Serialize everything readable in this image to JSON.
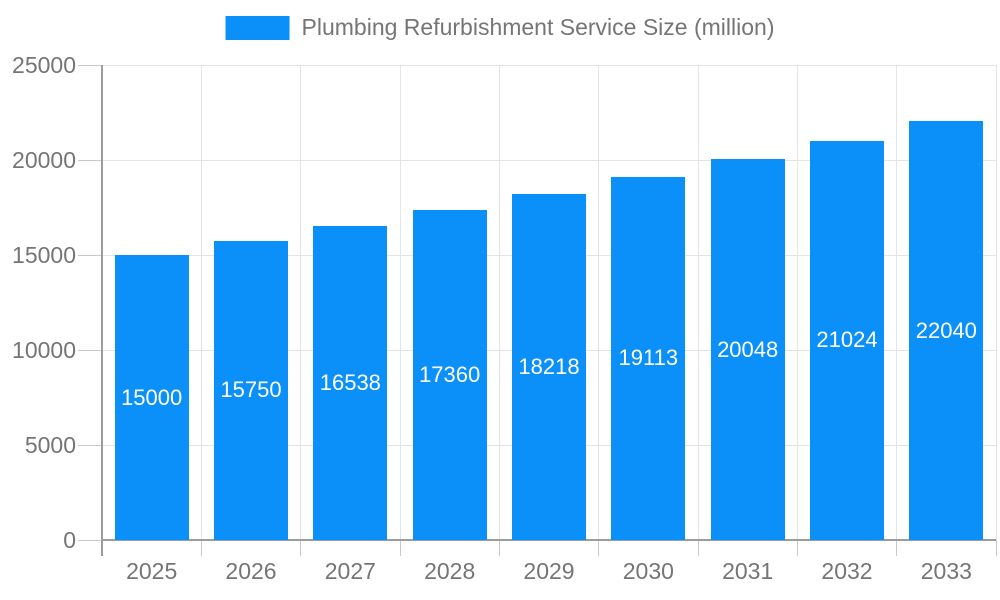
{
  "legend": {
    "label": "Plumbing Refurbishment Service Size (million)"
  },
  "chart_data": {
    "type": "bar",
    "title": "Plumbing Refurbishment Service Size (million)",
    "categories": [
      "2025",
      "2026",
      "2027",
      "2028",
      "2029",
      "2030",
      "2031",
      "2032",
      "2033"
    ],
    "values": [
      15000,
      15750,
      16538,
      17360,
      18218,
      19113,
      20048,
      21024,
      22040
    ],
    "xlabel": "",
    "ylabel": "",
    "ylim": [
      0,
      25000
    ],
    "yticks": [
      0,
      5000,
      10000,
      15000,
      20000,
      25000
    ],
    "grid": true,
    "legend_position": "top",
    "colors": {
      "bar": "#0A90F8",
      "bar_label_text": "#ffffff",
      "axis_line": "#9c9c9c",
      "gridline": "#e4e4e4",
      "tick_mark": "#c9c9c9",
      "axis_text": "#757575",
      "background": "#ffffff"
    }
  }
}
